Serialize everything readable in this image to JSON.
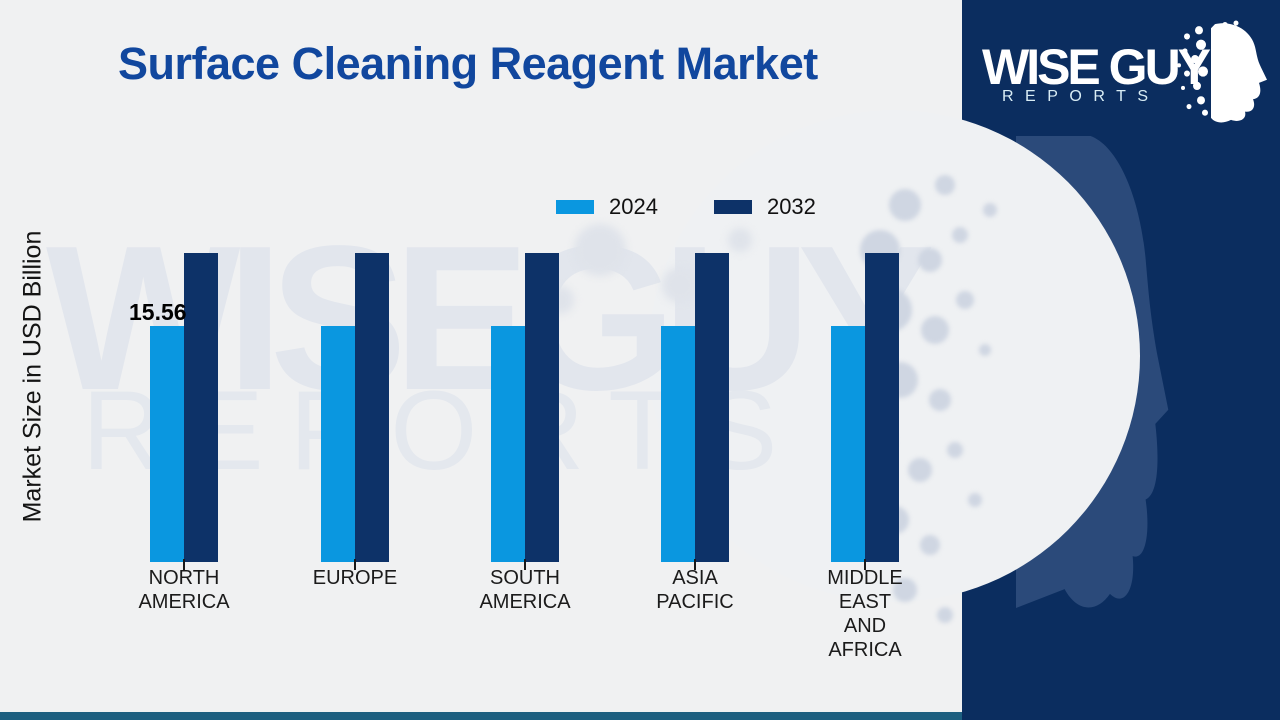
{
  "page": {
    "background_color": "#f0f1f2",
    "bottom_strip_color": "#1d5f80"
  },
  "header": {
    "title": "Surface Cleaning Reagent Market",
    "title_color": "#11479e"
  },
  "brand": {
    "logo_line1": "WISE GUY",
    "logo_line2": "REPORTS",
    "panel_color": "#0b2d5f",
    "watermark_line1": "WISEGUY",
    "watermark_line2": "REPORTS"
  },
  "legend": {
    "items": [
      {
        "label": "2024",
        "color": "#0a97e0"
      },
      {
        "label": "2032",
        "color": "#0d3268"
      }
    ]
  },
  "chart_data": {
    "type": "bar",
    "title": "Surface Cleaning Reagent Market",
    "xlabel": "",
    "ylabel": "Market Size in USD Billion",
    "categories": [
      "NORTH AMERICA",
      "EUROPE",
      "SOUTH AMERICA",
      "ASIA PACIFIC",
      "MIDDLE EAST AND AFRICA"
    ],
    "categories_wrapped": [
      "NORTH\nAMERICA",
      "EUROPE",
      "SOUTH\nAMERICA",
      "ASIA\nPACIFIC",
      "MIDDLE\nEAST\nAND\nAFRICA"
    ],
    "series": [
      {
        "name": "2024",
        "color": "#0a97e0",
        "values": [
          15.56,
          15.56,
          15.56,
          15.56,
          15.56
        ]
      },
      {
        "name": "2032",
        "color": "#0d3268",
        "values": [
          20.4,
          20.4,
          20.4,
          20.4,
          20.4
        ]
      }
    ],
    "value_labels": [
      {
        "series": "2024",
        "category": "NORTH AMERICA",
        "text": "15.56"
      }
    ],
    "ylim": [
      0,
      22
    ],
    "grid": false,
    "legend_position": "top-center"
  }
}
